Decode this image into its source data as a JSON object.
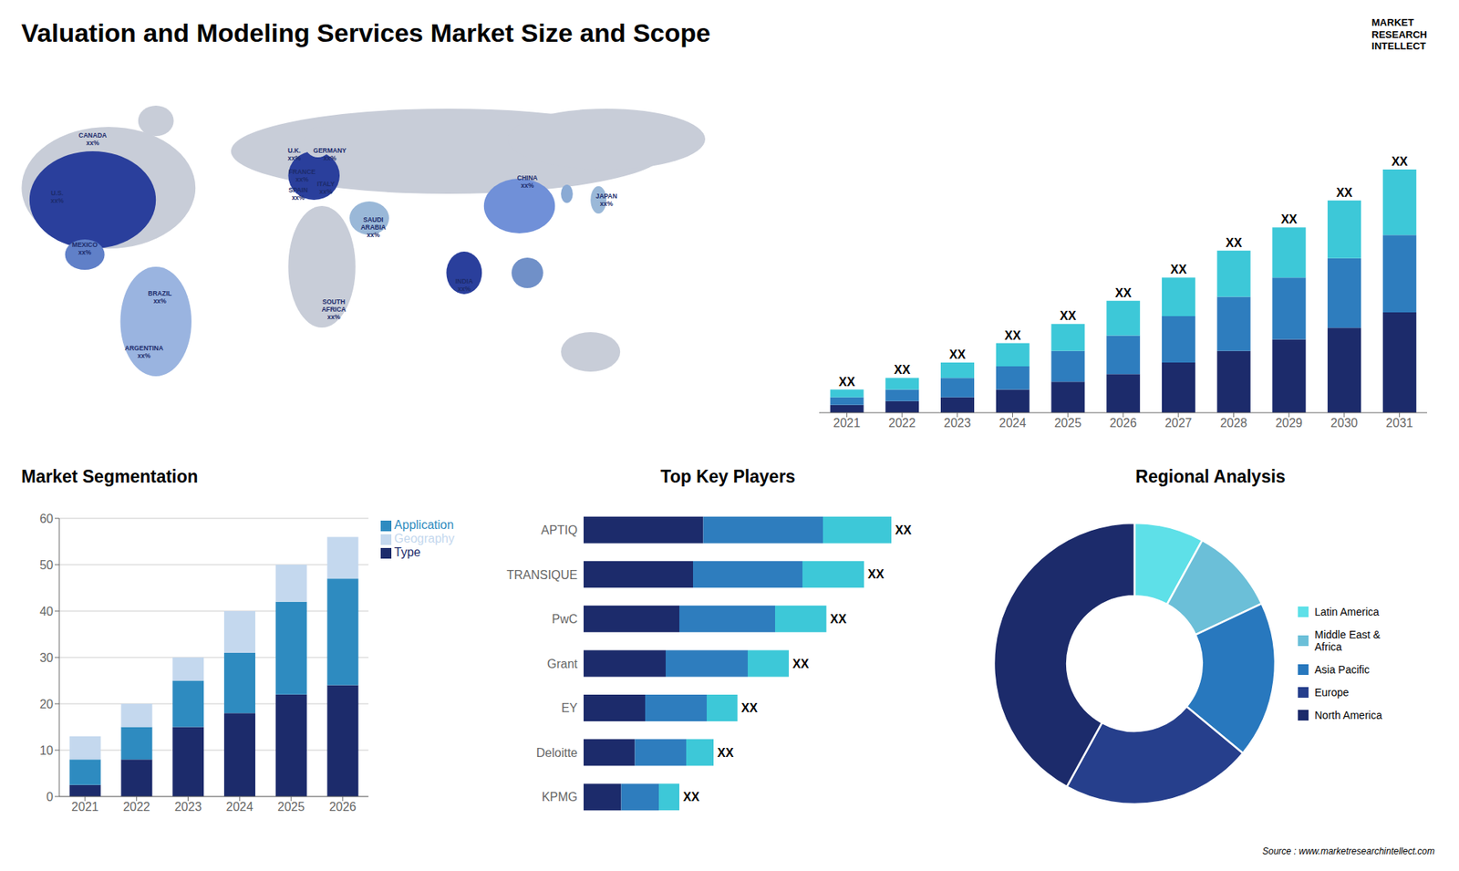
{
  "title": "Valuation and Modeling Services Market Size and Scope",
  "annotations": [
    "Source : www.marketresearchintellect.com",
    "MARKET\nRESEARCH\nINTELLECT"
  ],
  "chart_data": [
    {
      "type": "map",
      "color": "#1c2b6b",
      "colors": [
        "#c8cdd8",
        "#c8cdd8",
        "#c8cdd8",
        "#9ab4e0",
        "#c8cdd8",
        "#c8cdd8",
        "#2a3f9c",
        "#c8cdd8",
        "#6080c8",
        "#2a3f9c",
        "#c8cdd8",
        "#9ab8d8",
        "#7090d8",
        "#7090c8",
        "#9ab8d8",
        "#8aaad4",
        "#2a3f9c"
      ],
      "annotations": [
        "U.S.\nxx%",
        "CANADA\nxx%",
        "MEXICO\nxx%",
        "BRAZIL\nxx%",
        "ARGENTINA\nxx%",
        "U.K.\nxx%",
        "FRANCE\nxx%",
        "SPAIN\nxx%",
        "GERMANY\nxx%",
        "ITALY\nxx%",
        "SAUDI\nARABIA\nxx%",
        "SOUTH\nAFRICA\nxx%",
        "CHINA\nxx%",
        "INDIA\nxx%",
        "JAPAN\nxx%"
      ]
    },
    {
      "type": "bar",
      "stacked": true,
      "categories": [
        "2021",
        "2022",
        "2023",
        "2024",
        "2025",
        "2026",
        "2027",
        "2028",
        "2029",
        "2030",
        "2031"
      ],
      "series": [
        {
          "color": "#1c2b6b",
          "values": [
            2,
            3,
            4,
            6,
            8,
            10,
            13,
            16,
            19,
            22,
            26
          ]
        },
        {
          "color": "#2e7dbe",
          "values": [
            2,
            3,
            5,
            6,
            8,
            10,
            12,
            14,
            16,
            18,
            20
          ]
        },
        {
          "color": "#3dc8d8",
          "values": [
            2,
            3,
            4,
            6,
            7,
            9,
            10,
            12,
            13,
            15,
            17
          ],
          "value_labels": [
            "XX",
            "XX",
            "XX",
            "XX",
            "XX",
            "XX",
            "XX",
            "XX",
            "XX",
            "XX",
            "XX"
          ]
        }
      ],
      "ylim": [
        0,
        81.9
      ],
      "tick_labels": "x"
    },
    {
      "type": "bar",
      "title": "Market Segmentation",
      "stacked": true,
      "categories": [
        "2021",
        "2022",
        "2023",
        "2024",
        "2025",
        "2026"
      ],
      "series": [
        {
          "name": "Type",
          "color": "#1c2b6b",
          "values": [
            2.5,
            8,
            15,
            18,
            22,
            24
          ]
        },
        {
          "name": "Application",
          "color": "#2e8bc0",
          "values": [
            5.5,
            7,
            10,
            13,
            20,
            23
          ]
        },
        {
          "name": "Geography",
          "color": "#c4d8ee",
          "values": [
            5,
            5,
            5,
            9,
            8,
            9
          ]
        }
      ],
      "ylim": [
        0,
        60
      ],
      "yticks": [
        0,
        10,
        20,
        30,
        40,
        50,
        60
      ],
      "grid": true,
      "legend": "right"
    },
    {
      "type": "bar",
      "title": "Top Key Players",
      "orientation": "horizontal",
      "stacked": true,
      "categories": [
        "APTIQ",
        "TRANSIQUE",
        "PwC",
        "Grant",
        "EY",
        "Deloitte",
        "KPMG"
      ],
      "series": [
        {
          "color": "#1c2b6b",
          "values": [
            3.5,
            3.2,
            2.8,
            2.4,
            1.8,
            1.5,
            1.1
          ]
        },
        {
          "color": "#2e7dbe",
          "values": [
            3.5,
            3.2,
            2.8,
            2.4,
            1.8,
            1.5,
            1.1
          ]
        },
        {
          "color": "#3dc8d8",
          "values": [
            2.0,
            1.8,
            1.5,
            1.2,
            0.9,
            0.8,
            0.6
          ],
          "value_labels": [
            "XX",
            "XX",
            "XX",
            "XX",
            "XX",
            "XX",
            "XX"
          ]
        }
      ],
      "xlim": [
        0,
        10
      ],
      "tick_labels": "y"
    },
    {
      "type": "pie",
      "title": "Regional Analysis",
      "categories": [
        "Latin America",
        "Middle East &\nAfrica",
        "Asia Pacific",
        "Europe",
        "North America"
      ],
      "values": [
        8,
        10,
        18,
        22,
        42
      ],
      "colors": [
        "#5ee0e8",
        "#6bbfd8",
        "#2878be",
        "#263f8c",
        "#1c2b6b"
      ],
      "legend": "right"
    }
  ]
}
